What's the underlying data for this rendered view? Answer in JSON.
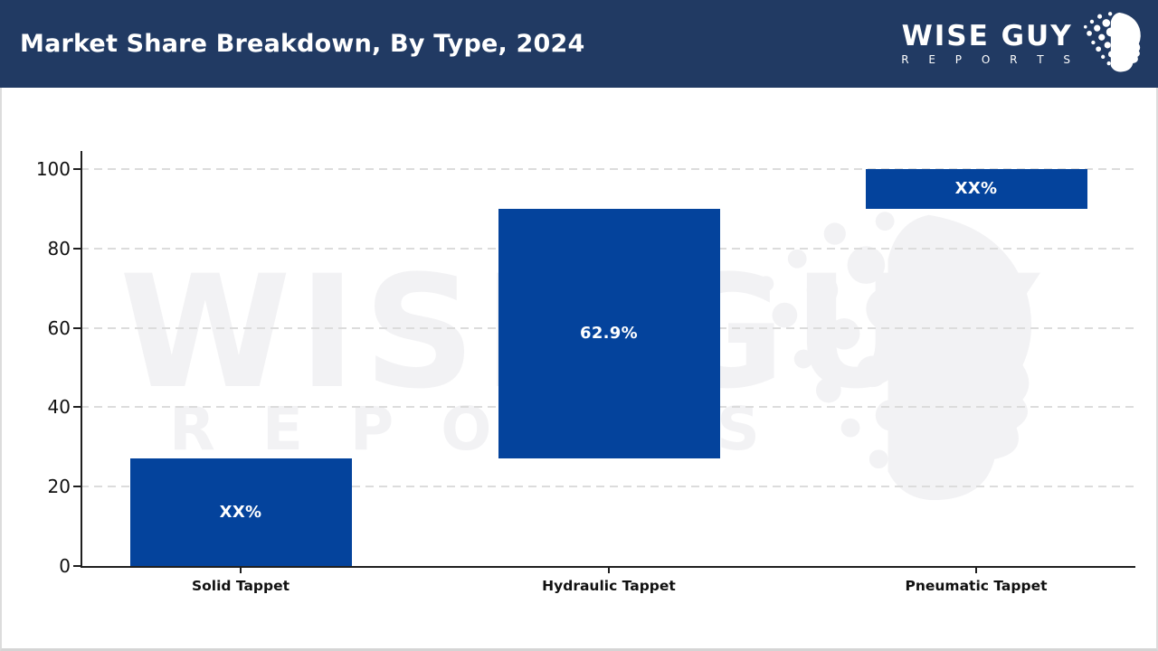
{
  "header": {
    "title": "Market Share Breakdown, By Type, 2024",
    "bg_color": "#213a63",
    "logo": {
      "line1": "WISE GUY",
      "line2": "R E P O R T S"
    }
  },
  "watermark": {
    "line1": "WISE GUY",
    "line2": "REPORTS"
  },
  "chart_data": {
    "type": "bar",
    "subtype": "floating-segment-waterfall",
    "title": "Market Share Breakdown, By Type, 2024",
    "categories": [
      "Solid Tappet",
      "Hydraulic Tappet",
      "Pneumatic Tappet"
    ],
    "series": [
      {
        "name": "Market share (%)",
        "segments": [
          {
            "category": "Solid Tappet",
            "start": 0,
            "end": 27.1,
            "label": "XX%"
          },
          {
            "category": "Hydraulic Tappet",
            "start": 27.1,
            "end": 90.0,
            "label": "62.9%"
          },
          {
            "category": "Pneumatic Tappet",
            "start": 90.0,
            "end": 100.0,
            "label": "XX%"
          }
        ]
      }
    ],
    "xlabel": "",
    "ylabel": "",
    "ylim": [
      0,
      104.5
    ],
    "yticks": [
      0,
      20,
      40,
      60,
      80,
      100
    ],
    "grid": "horizontal-dashed",
    "legend": "none",
    "bar_color": "#04439c",
    "bar_label_color": "#ffffff",
    "grid_color": "#dcdcdc",
    "axis_color": "#1f1f1f"
  }
}
